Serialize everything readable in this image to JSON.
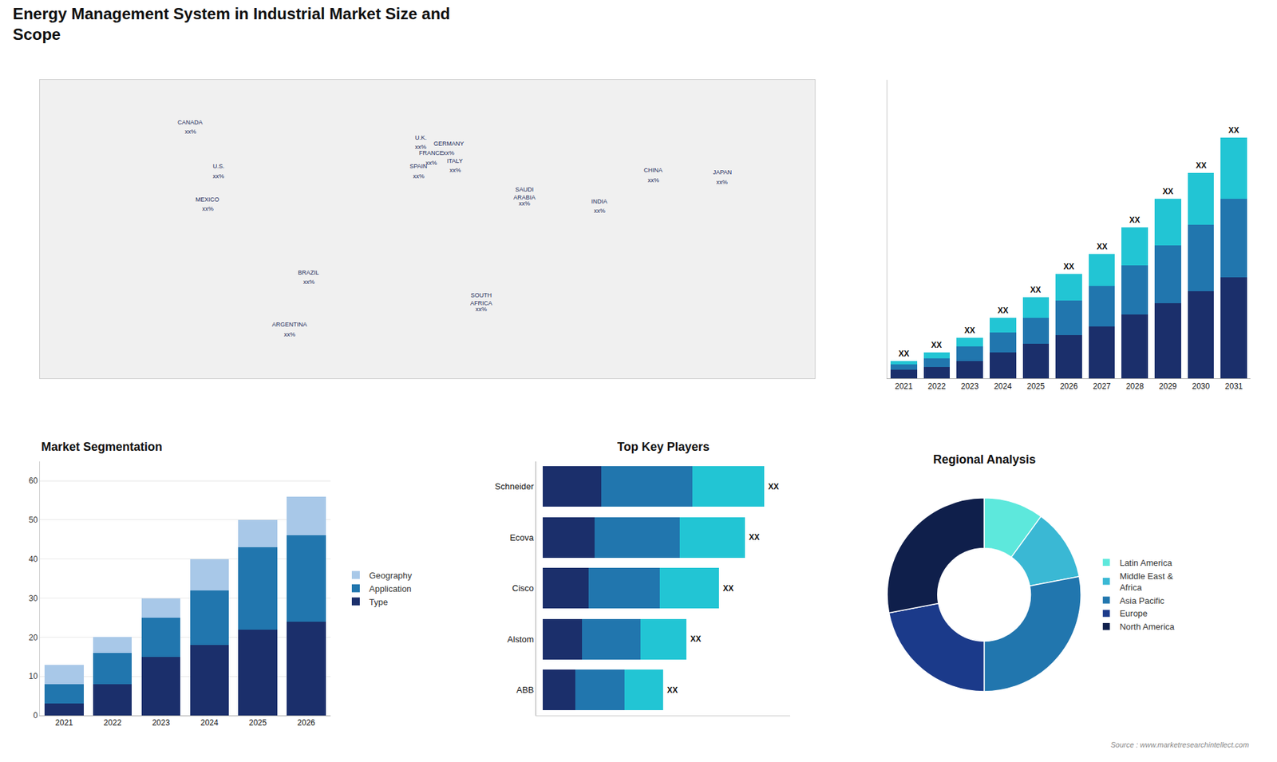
{
  "title": "Energy Management System in Industrial Market Size and\nScope",
  "annotations": [
    {
      "text": "Source : www.marketresearchintellect.com"
    }
  ],
  "chart_data": [
    {
      "type": "map",
      "xlim": [
        -180,
        180
      ],
      "ylim": [
        -70,
        85
      ],
      "tick_labels": false,
      "grid": false,
      "annotations": [
        {
          "text": "CANADA",
          "x": -110,
          "y": 63
        },
        {
          "text": "xx%",
          "x": -110,
          "y": 58
        },
        {
          "text": "U.S.",
          "x": -97,
          "y": 40
        },
        {
          "text": "xx%",
          "x": -97,
          "y": 35
        },
        {
          "text": "MEXICO",
          "x": -102,
          "y": 23
        },
        {
          "text": "xx%",
          "x": -102,
          "y": 18
        },
        {
          "text": "BRAZIL",
          "x": -55,
          "y": -15
        },
        {
          "text": "xx%",
          "x": -55,
          "y": -20
        },
        {
          "text": "ARGENTINA",
          "x": -64,
          "y": -42
        },
        {
          "text": "xx%",
          "x": -64,
          "y": -47
        },
        {
          "text": "U.K.",
          "x": -3,
          "y": 55
        },
        {
          "text": "xx%",
          "x": -3,
          "y": 50
        },
        {
          "text": "FRANCE",
          "x": 2,
          "y": 47
        },
        {
          "text": "xx%",
          "x": 2,
          "y": 42
        },
        {
          "text": "SPAIN",
          "x": -4,
          "y": 40
        },
        {
          "text": "xx%",
          "x": -4,
          "y": 35
        },
        {
          "text": "GERMANY",
          "x": 10,
          "y": 52
        },
        {
          "text": "xx%",
          "x": 10,
          "y": 47
        },
        {
          "text": "ITALY",
          "x": 13,
          "y": 43
        },
        {
          "text": "xx%",
          "x": 13,
          "y": 38
        },
        {
          "text": "SAUDI\nARABIA",
          "x": 45,
          "y": 26
        },
        {
          "text": "xx%",
          "x": 45,
          "y": 21
        },
        {
          "text": "SOUTH\nAFRICA",
          "x": 25,
          "y": -29
        },
        {
          "text": "xx%",
          "x": 25,
          "y": -34
        },
        {
          "text": "CHINA",
          "x": 105,
          "y": 38
        },
        {
          "text": "xx%",
          "x": 105,
          "y": 33
        },
        {
          "text": "INDIA",
          "x": 80,
          "y": 22
        },
        {
          "text": "xx%",
          "x": 80,
          "y": 17
        },
        {
          "text": "JAPAN",
          "x": 137,
          "y": 37
        },
        {
          "text": "xx%",
          "x": 137,
          "y": 32
        }
      ]
    },
    {
      "type": "bar",
      "stacked": true,
      "categories": [
        "2021",
        "2022",
        "2023",
        "2024",
        "2025",
        "2026",
        "2027",
        "2028",
        "2029",
        "2030",
        "2031"
      ],
      "series": [
        {
          "color": "#1b2f6b",
          "values": [
            3,
            4,
            6,
            9,
            12,
            15,
            18,
            22,
            26,
            30,
            35
          ]
        },
        {
          "color": "#2176ae",
          "values": [
            2,
            3,
            5,
            7,
            9,
            12,
            14,
            17,
            20,
            23,
            27
          ]
        },
        {
          "color": "#22c5d4",
          "values": [
            1,
            2,
            3,
            5,
            7,
            9,
            11,
            13,
            16,
            18,
            21
          ]
        }
      ],
      "ylim": [
        0,
        103
      ],
      "yticks": [],
      "tick_labels": "x",
      "grid": false,
      "annotations": [
        {
          "text": "XX",
          "x": "2021",
          "y": 6
        },
        {
          "text": "XX",
          "x": "2022",
          "y": 9
        },
        {
          "text": "XX",
          "x": "2023",
          "y": 14
        },
        {
          "text": "XX",
          "x": "2024",
          "y": 21
        },
        {
          "text": "XX",
          "x": "2025",
          "y": 28
        },
        {
          "text": "XX",
          "x": "2026",
          "y": 36
        },
        {
          "text": "XX",
          "x": "2027",
          "y": 43
        },
        {
          "text": "XX",
          "x": "2028",
          "y": 52
        },
        {
          "text": "XX",
          "x": "2029",
          "y": 62
        },
        {
          "text": "XX",
          "x": "2030",
          "y": 71
        },
        {
          "text": "XX",
          "x": "2031",
          "y": 83
        }
      ]
    },
    {
      "type": "bar",
      "title": "Market Segmentation",
      "stacked": true,
      "categories": [
        "2021",
        "2022",
        "2023",
        "2024",
        "2025",
        "2026"
      ],
      "series": [
        {
          "name": "Type",
          "color": "#1b2f6b",
          "values": [
            3,
            8,
            15,
            18,
            22,
            24
          ]
        },
        {
          "name": "Application",
          "color": "#2176ae",
          "values": [
            5,
            8,
            10,
            14,
            21,
            22
          ]
        },
        {
          "name": "Geography",
          "color": "#a8c8e8",
          "values": [
            5,
            4,
            5,
            8,
            7,
            10
          ]
        }
      ],
      "ylim": [
        0,
        65
      ],
      "yticks": [
        0,
        10,
        20,
        30,
        40,
        50,
        60
      ],
      "grid": true,
      "legend": "right"
    },
    {
      "type": "bar",
      "title": "Top Key Players",
      "orientation": "horizontal",
      "stacked": true,
      "categories": [
        "Schneider",
        "Ecova",
        "Cisco",
        "Alstom",
        "ABB"
      ],
      "series": [
        {
          "color": "#1b2f6b",
          "values": [
            0.18,
            0.16,
            0.14,
            0.12,
            0.1
          ]
        },
        {
          "color": "#2176ae",
          "values": [
            0.28,
            0.26,
            0.22,
            0.18,
            0.15
          ]
        },
        {
          "color": "#22c5d4",
          "values": [
            0.22,
            0.2,
            0.18,
            0.14,
            0.12
          ]
        }
      ],
      "xlim": [
        -0.02,
        0.76
      ],
      "xticks": [],
      "tick_labels": "y",
      "grid": false,
      "annotations": [
        {
          "text": "XX",
          "x": 0.68,
          "y": "Schneider"
        },
        {
          "text": "XX",
          "x": 0.62,
          "y": "Ecova"
        },
        {
          "text": "XX",
          "x": 0.54,
          "y": "Cisco"
        },
        {
          "text": "XX",
          "x": 0.44,
          "y": "Alstom"
        },
        {
          "text": "XX",
          "x": 0.37,
          "y": "ABB"
        }
      ]
    },
    {
      "type": "pie",
      "title": "Regional Analysis",
      "categories": [
        "Latin America",
        "Middle East &\nAfrica",
        "Asia Pacific",
        "Europe",
        "North America"
      ],
      "values": [
        10,
        12,
        28,
        22,
        28
      ],
      "colors": [
        "#5de8dc",
        "#3ab8d4",
        "#2176ae",
        "#1b3a8a",
        "#0f1f4b"
      ],
      "legend": "right"
    }
  ]
}
